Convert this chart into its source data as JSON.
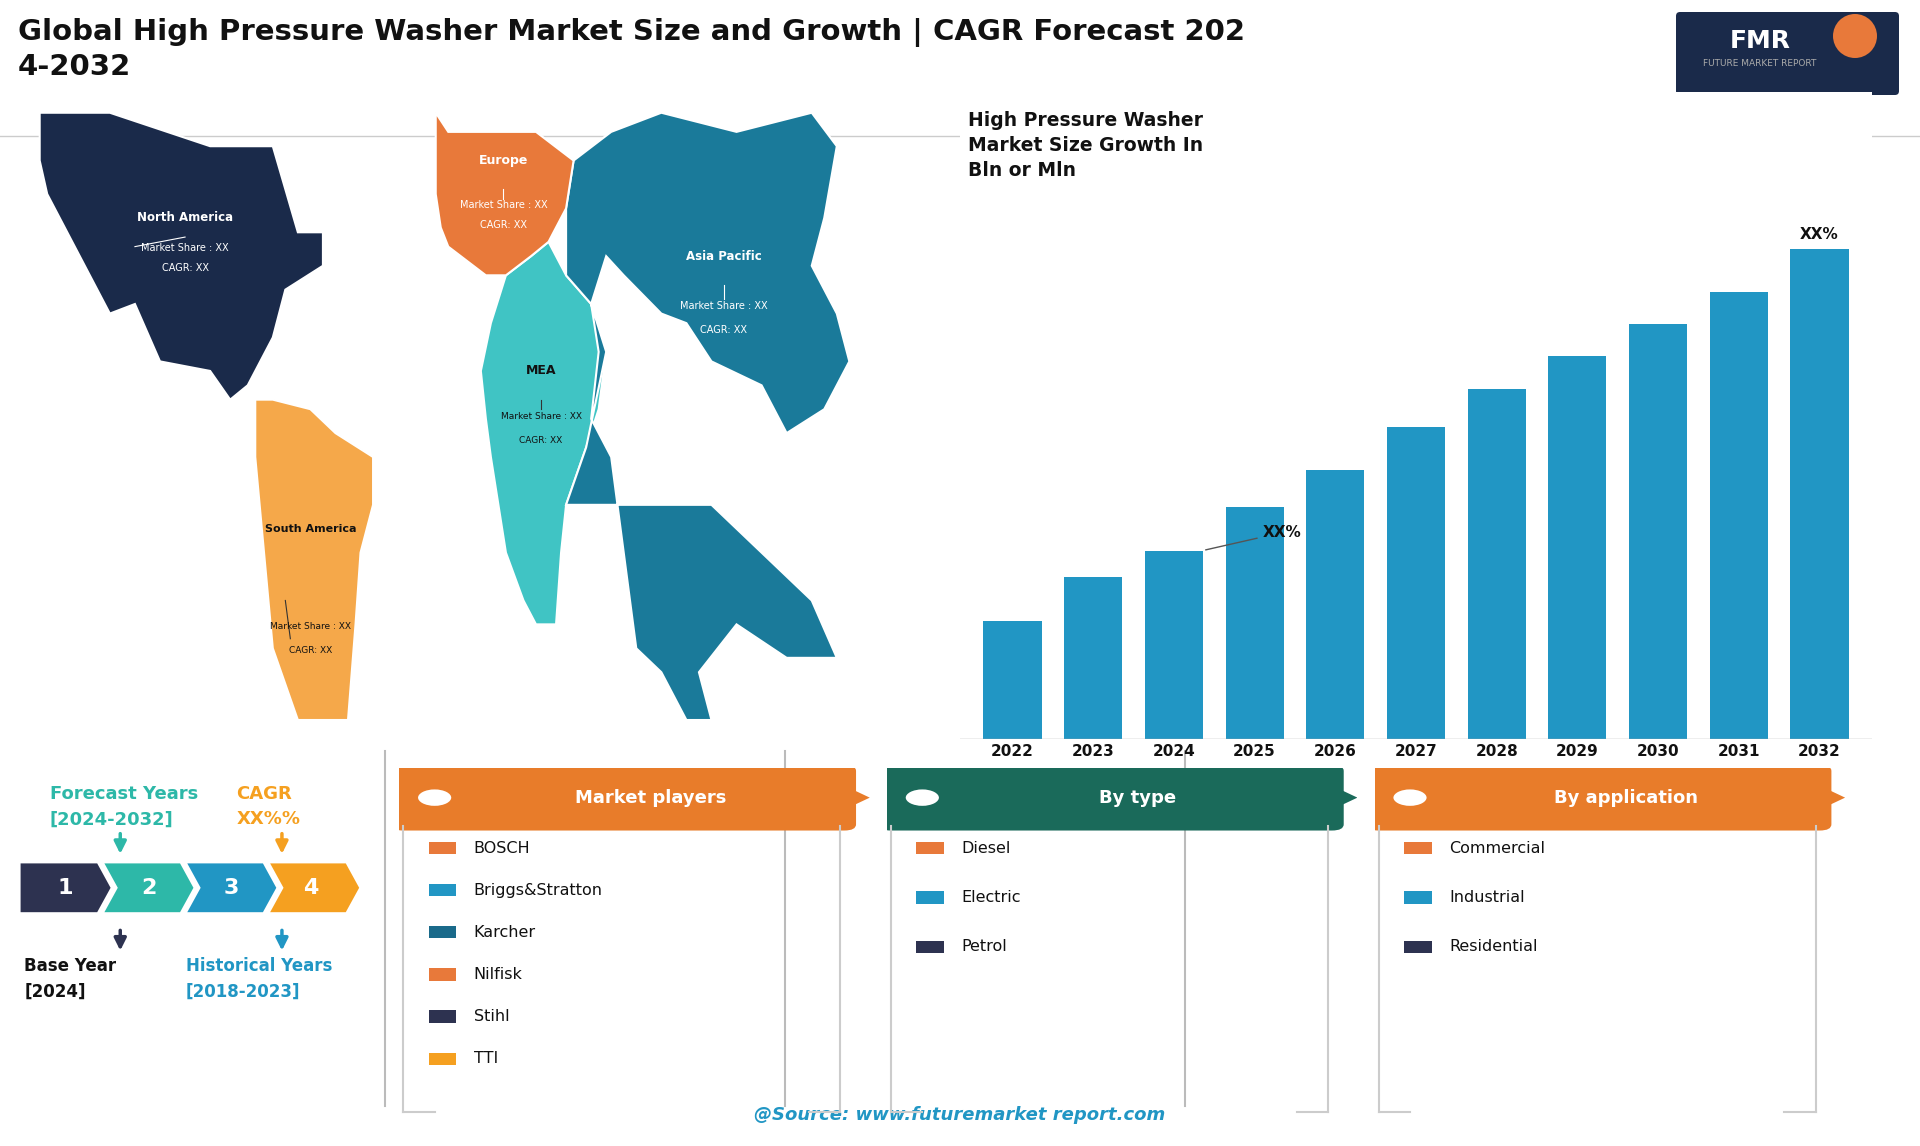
{
  "title_line1": "Global High Pressure Washer Market Size and Growth | CAGR Forecast 202",
  "title_line2": "4-2032",
  "title_fontsize": 21,
  "bar_years": [
    "2022",
    "2023",
    "2024",
    "2025",
    "2026",
    "2027",
    "2028",
    "2029",
    "2030",
    "2031",
    "2032"
  ],
  "bar_values": [
    2.2,
    3.0,
    3.5,
    4.3,
    5.0,
    5.8,
    6.5,
    7.1,
    7.7,
    8.3,
    9.1
  ],
  "bar_color": "#2196c4",
  "bar_chart_title": "High Pressure Washer\nMarket Size Growth In\nBln or Mln",
  "bar_annotation_idx": 2,
  "bar_annotation_text": "XX%",
  "bar_last_text": "XX%",
  "chart_bg": "#ffffff",
  "forecast_years_label1": "Forecast Years",
  "forecast_years_label2": "[2024-2032]",
  "cagr_label1": "CAGR",
  "cagr_label2": "XX%%",
  "base_year_label1": "Base Year",
  "base_year_label2": "[2024]",
  "historical_years_label1": "Historical Years",
  "historical_years_label2": "[2018-2023]",
  "step_colors": [
    "#2d3250",
    "#2db8a8",
    "#2196c4",
    "#f5a020"
  ],
  "step_numbers": [
    "1",
    "2",
    "3",
    "4"
  ],
  "market_players_title": "Market players",
  "market_players": [
    "BOSCH",
    "Briggs&Stratton",
    "Karcher",
    "Nilfisk",
    "Stihl",
    "TTI"
  ],
  "market_players_dot_colors": [
    "#e8793a",
    "#2196c4",
    "#1a6a8a",
    "#e8793a",
    "#2d3250",
    "#f5a020"
  ],
  "by_type_title": "By type",
  "by_type": [
    "Diesel",
    "Electric",
    "Petrol"
  ],
  "by_type_dot_colors": [
    "#e8793a",
    "#2196c4",
    "#2d3250"
  ],
  "by_app_title": "By application",
  "by_app": [
    "Commercial",
    "Industrial",
    "Residential"
  ],
  "by_app_dot_colors": [
    "#e8793a",
    "#2196c4",
    "#2d3250"
  ],
  "header_color_orange": "#e87c2a",
  "header_color_teal": "#1a6a5a",
  "source_text": "@Source: www.futuremarket report.com",
  "teal_color": "#2db8a8",
  "orange_color": "#f5a020",
  "dark_navy": "#2d3250",
  "mid_blue": "#2196c4",
  "na_color": "#1a2a4a",
  "europe_color": "#e8793a",
  "ap_color": "#1a7a9a",
  "mea_color": "#40c4c4",
  "sa_color": "#f5a84a"
}
